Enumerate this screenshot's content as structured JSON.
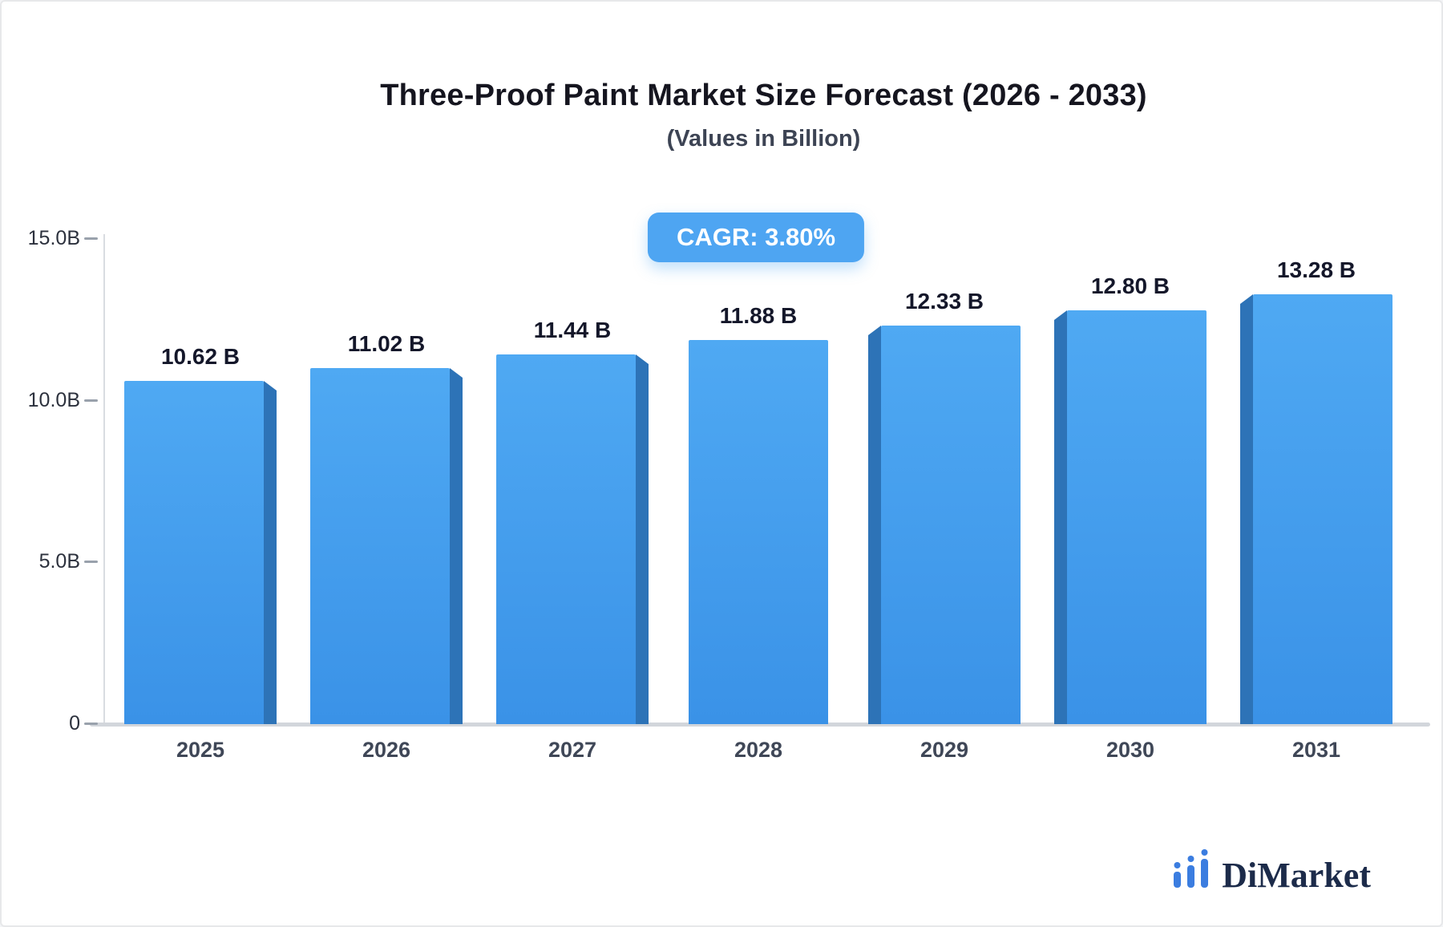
{
  "header": {
    "title": "Three-Proof Paint Market Size Forecast (2026 - 2033)",
    "subtitle": "(Values in Billion)",
    "cagr_badge": "CAGR: 3.80%"
  },
  "branding": {
    "name": "DiMarket",
    "icon": "bar-chart-logo-icon"
  },
  "chart_data": {
    "type": "bar",
    "title": "Three-Proof Paint Market Size Forecast (2026 - 2033)",
    "subtitle": "(Values in Billion)",
    "annotation": "CAGR: 3.80%",
    "categories": [
      "2025",
      "2026",
      "2027",
      "2028",
      "2029",
      "2030",
      "2031"
    ],
    "values": [
      10.62,
      11.02,
      11.44,
      11.88,
      12.33,
      12.8,
      13.28
    ],
    "bar_labels": [
      "10.62 B",
      "11.02 B",
      "11.44 B",
      "11.88 B",
      "12.33 B",
      "12.80 B",
      "13.28 B"
    ],
    "xlabel": "",
    "ylabel": "",
    "ylim": [
      0,
      15
    ],
    "yticks": [
      {
        "label": "15.0B",
        "value": 15
      },
      {
        "label": "10.0B",
        "value": 10
      },
      {
        "label": "5.0B",
        "value": 5
      },
      {
        "label": "0",
        "value": 0
      }
    ],
    "grid": false,
    "legend": false,
    "style": "pseudo-3d bars, perspective toward center",
    "colors": {
      "bar_top": "#4FA9F3",
      "bar_bottom": "#3A92E7",
      "bar_side": "#2D73B7",
      "badge_bg": "#4EA5F2",
      "badge_text": "#FFFFFF",
      "axis": "#D2D6DB",
      "brand_text": "#1C2B4A",
      "brand_icon": "#3B7DE0"
    }
  }
}
